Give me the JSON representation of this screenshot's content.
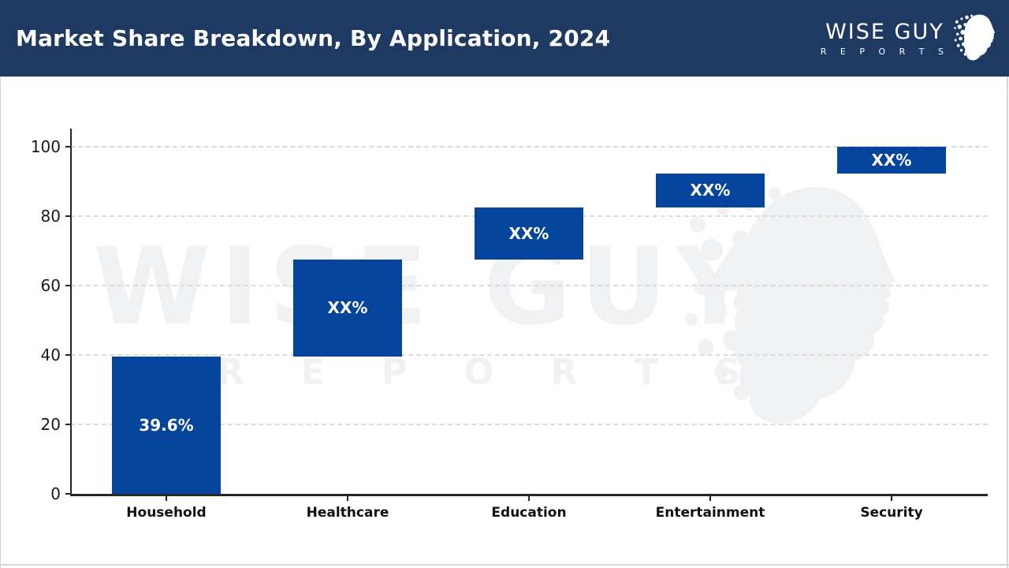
{
  "header": {
    "title": "Market Share Breakdown, By Application, 2024",
    "background_color": "#1e3a63",
    "logo": {
      "line1": "WISE GUY",
      "line2": "R E P O R T S"
    }
  },
  "watermark": {
    "line1": "WISE GUY",
    "line2": "R E P O R T S"
  },
  "chart_data": {
    "type": "bar",
    "subtype": "waterfall",
    "title": "Market Share Breakdown, By Application, 2024",
    "categories": [
      "Household",
      "Healthcare",
      "Education",
      "Entertainment",
      "Security"
    ],
    "segments": [
      {
        "category": "Household",
        "start": 0,
        "end": 39.6,
        "label": "39.6%"
      },
      {
        "category": "Healthcare",
        "start": 39.6,
        "end": 67.6,
        "label": "XX%"
      },
      {
        "category": "Education",
        "start": 67.6,
        "end": 82.5,
        "label": "XX%"
      },
      {
        "category": "Entertainment",
        "start": 82.5,
        "end": 92.3,
        "label": "XX%"
      },
      {
        "category": "Security",
        "start": 92.3,
        "end": 100,
        "label": "XX%"
      }
    ],
    "xlabel": "",
    "ylabel": "",
    "ylim": [
      0,
      105
    ],
    "yticks": [
      0,
      20,
      40,
      60,
      80,
      100
    ],
    "grid": "horizontal-dashed",
    "legend": "none",
    "bar_color": "#05449c",
    "bar_label_color": "#ffffff",
    "axis_color": "#262626",
    "gridline_color": "#dcdcdc"
  }
}
